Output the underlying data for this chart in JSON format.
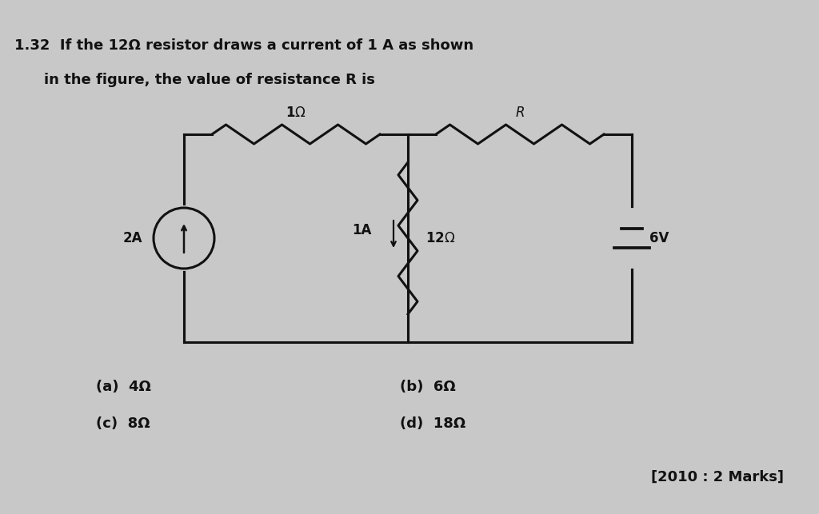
{
  "bg_color": "#c8c8c8",
  "title_line1": "1.32  If the 12Ω resistor draws a current of 1 A as shown",
  "title_line2": "in the figure, the value of resistance R is",
  "options": [
    "(a)  4Ω",
    "(b)  6Ω",
    "(c)  8Ω",
    "(d)  18Ω"
  ],
  "footer": "[2010 : 2 Marks]",
  "text_color": "#111111",
  "circuit_color": "#111111",
  "fig_width": 10.24,
  "fig_height": 6.43
}
